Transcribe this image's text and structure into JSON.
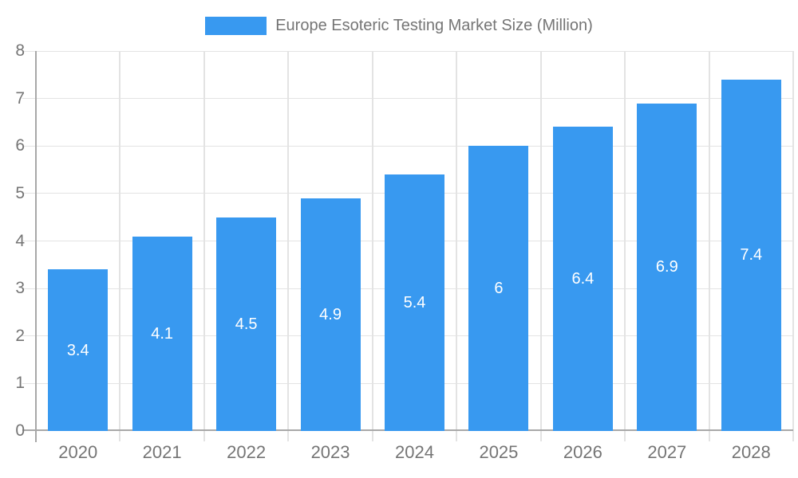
{
  "chart_data": {
    "type": "bar",
    "title": "Europe Esoteric Testing Market Size (Million)",
    "legend_position": "top",
    "categories": [
      "2020",
      "2021",
      "2022",
      "2023",
      "2024",
      "2025",
      "2026",
      "2027",
      "2028"
    ],
    "values": [
      3.4,
      4.1,
      4.5,
      4.9,
      5.4,
      6,
      6.4,
      6.9,
      7.4
    ],
    "value_labels": [
      "3.4",
      "4.1",
      "4.5",
      "4.9",
      "5.4",
      "6",
      "6.4",
      "6.9",
      "7.4"
    ],
    "xlabel": "",
    "ylabel": "",
    "ylim": [
      0,
      8
    ],
    "y_ticks": [
      "0",
      "1",
      "2",
      "3",
      "4",
      "5",
      "6",
      "7",
      "8"
    ],
    "grid": true,
    "colors": {
      "bar": "#3899f0",
      "bar_label_text": "#ffffff",
      "legend_text": "#757575",
      "axis_text": "#757575",
      "grid_line": "#e3e3e3",
      "axis_line": "#a8a8a8",
      "background": "#ffffff"
    }
  }
}
